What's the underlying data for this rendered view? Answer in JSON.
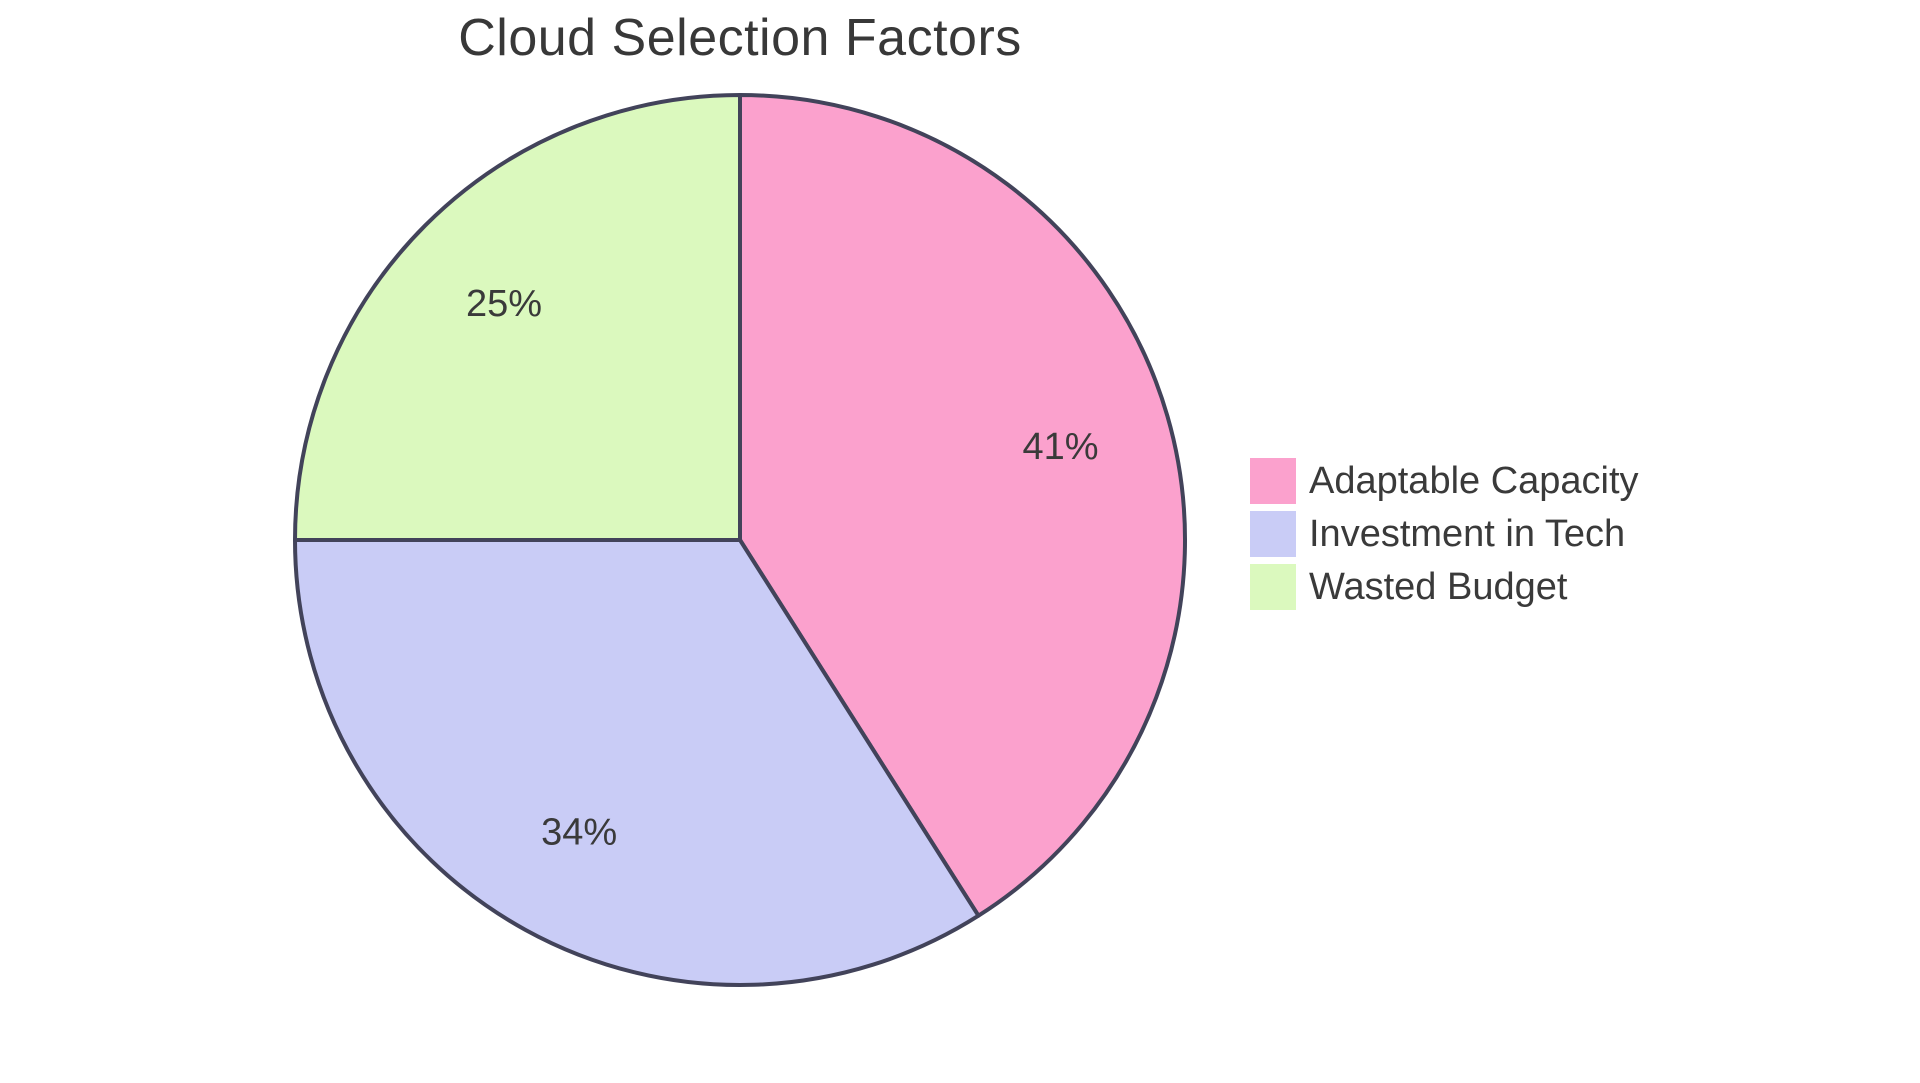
{
  "chart_data": {
    "type": "pie",
    "title": "Cloud Selection Factors",
    "categories": [
      "Adaptable Capacity",
      "Investment in Tech",
      "Wasted Budget"
    ],
    "values": [
      41,
      34,
      25
    ],
    "slices": [
      {
        "label": "Adaptable Capacity",
        "value": 41,
        "pct_label": "41%",
        "color": "#FBA1CD"
      },
      {
        "label": "Investment in Tech",
        "value": 34,
        "pct_label": "34%",
        "color": "#C9CCF6"
      },
      {
        "label": "Wasted Budget",
        "value": 25,
        "pct_label": "25%",
        "color": "#DBF9BE"
      }
    ],
    "start_angle": "12-o-clock",
    "direction": "clockwise",
    "stroke_color": "#42435A",
    "text_color": "#3a3a3a",
    "legend_position": "right",
    "legend_entries": [
      "Adaptable Capacity",
      "Investment in Tech",
      "Wasted Budget"
    ]
  }
}
